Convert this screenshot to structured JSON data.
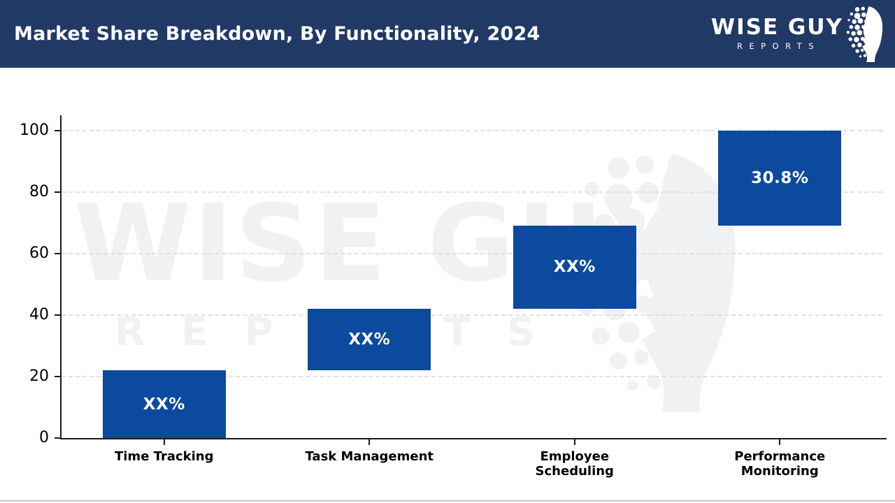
{
  "header": {
    "title": "Market Share Breakdown, By Functionality, 2024",
    "logo": {
      "name": "WISE GUY",
      "subtitle": "REPORTS"
    }
  },
  "watermark": {
    "line1": "WISE GUY",
    "line2": "REPORTS"
  },
  "chart_data": {
    "type": "bar",
    "subtype": "waterfall-floating-bars",
    "title": "Market Share Breakdown, By Functionality, 2024",
    "categories": [
      "Time Tracking",
      "Task Management",
      "Employee\nScheduling",
      "Performance\nMonitoring"
    ],
    "bars": [
      {
        "category": "Time Tracking",
        "start": 0,
        "end": 22,
        "label": "XX%"
      },
      {
        "category": "Task Management",
        "start": 22,
        "end": 42,
        "label": "XX%"
      },
      {
        "category": "Employee Scheduling",
        "start": 42,
        "end": 69.2,
        "label": "XX%"
      },
      {
        "category": "Performance Monitoring",
        "start": 69.2,
        "end": 100,
        "label": "30.8%"
      }
    ],
    "yticks": [
      0,
      20,
      40,
      60,
      80,
      100
    ],
    "ylim": [
      0,
      100
    ],
    "xlabel": "",
    "ylabel": "",
    "legend": "none",
    "grid": "horizontal-dashed",
    "bar_color": "#0b4a9e"
  },
  "colors": {
    "header_bg": "#213965",
    "bar": "#0b4a9e",
    "axis": "#1a1a1a",
    "gridline": "#e0e0e0",
    "watermark": "#f0f1f3",
    "footer_line": "#c9c9c9"
  }
}
